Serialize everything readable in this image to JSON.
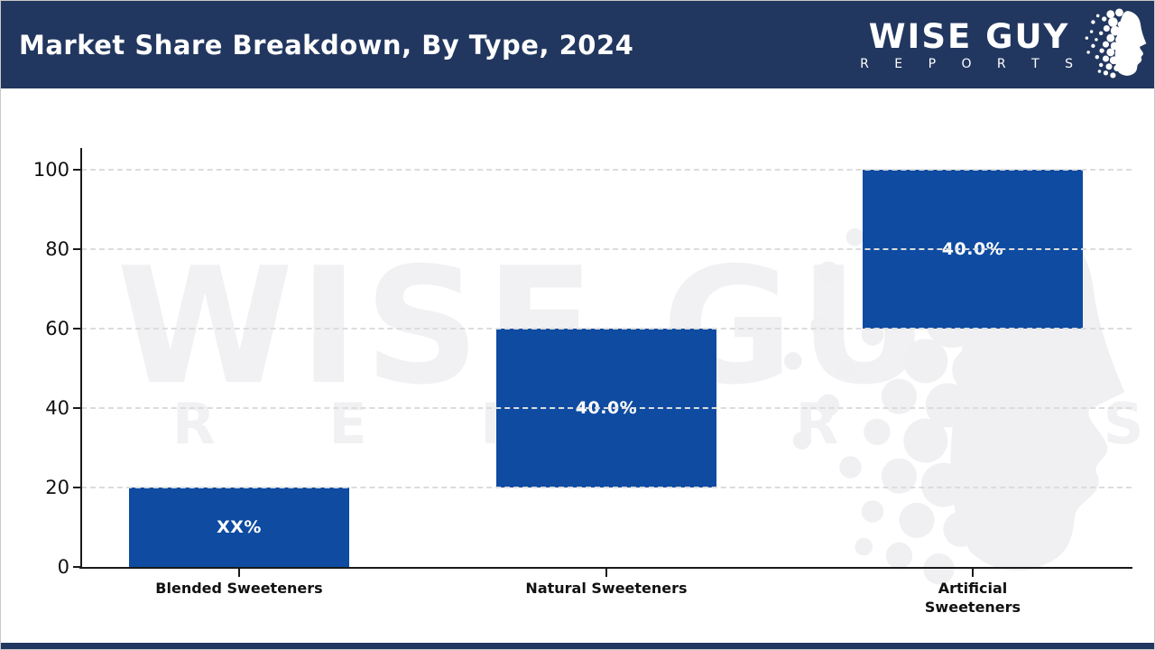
{
  "header": {
    "title": "Market Share Breakdown, By Type, 2024",
    "logo": {
      "line1": "WISE GUY",
      "line2": "R E P O R T S"
    }
  },
  "watermark": {
    "line1": "WISE GUY",
    "line2": "R E P O R T S"
  },
  "footer": {},
  "chart_data": {
    "type": "bar",
    "subtype": "floating-waterfall",
    "title": "Market Share Breakdown, By Type, 2024",
    "categories": [
      "Blended Sweeteners",
      "Natural Sweeteners",
      "Artificial Sweeteners"
    ],
    "category_label_lines": [
      [
        "Blended Sweeteners"
      ],
      [
        "Natural Sweeteners"
      ],
      [
        "Artificial",
        "Sweeteners"
      ]
    ],
    "segments": [
      {
        "category": "Blended Sweeteners",
        "start": 0,
        "end": 20,
        "label": "XX%"
      },
      {
        "category": "Natural Sweeteners",
        "start": 20,
        "end": 60,
        "label": "40.0%"
      },
      {
        "category": "Artificial Sweeteners",
        "start": 60,
        "end": 100,
        "label": "40.0%"
      }
    ],
    "yticks": [
      0,
      20,
      40,
      60,
      80,
      100
    ],
    "ylim": [
      0,
      105
    ],
    "xlabel": "",
    "ylabel": "",
    "grid": "horizontal-dashed",
    "legend": "none",
    "bar_color": "#0e4ba1",
    "label_color": "#ffffff"
  },
  "colors": {
    "header_navy": "#22375f",
    "bar_blue": "#0e4ba1",
    "gridline": "#dcdcdc",
    "watermark": "#f1f1f4",
    "axis": "#1a1a1a"
  }
}
